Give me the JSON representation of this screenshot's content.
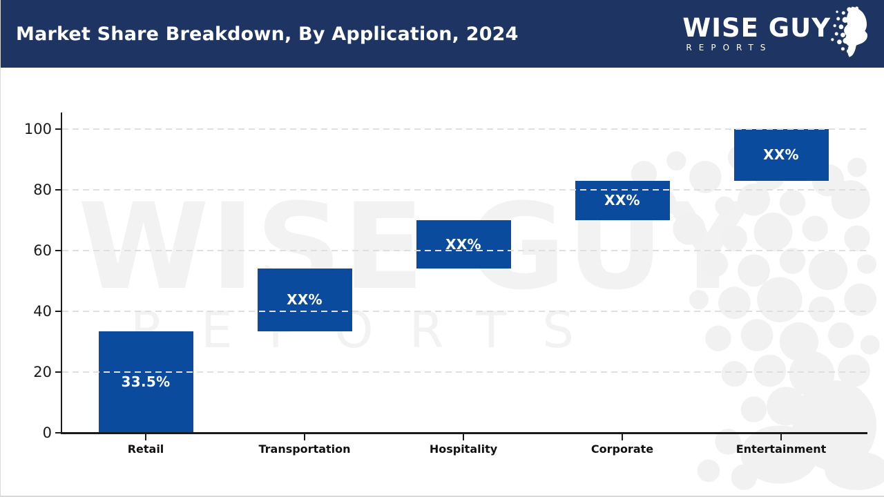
{
  "header": {
    "title": "Market Share Breakdown, By Application, 2024",
    "logo": {
      "line1": "WISE GUY",
      "line2": "REPORTS"
    }
  },
  "watermark": {
    "line1": "WISE GUY",
    "line2": "REPORTS"
  },
  "chart_data": {
    "type": "bar",
    "subtype": "waterfall-style floating percentage segments",
    "title": "Market Share Breakdown, By Application, 2024",
    "categories": [
      "Retail",
      "Transportation",
      "Hospitality",
      "Corporate",
      "Entertainment"
    ],
    "segments": [
      {
        "category": "Retail",
        "start": 0,
        "end": 33.5,
        "label": "33.5%"
      },
      {
        "category": "Transportation",
        "start": 33.5,
        "end": 54,
        "label": "XX%"
      },
      {
        "category": "Hospitality",
        "start": 54,
        "end": 70,
        "label": "XX%"
      },
      {
        "category": "Corporate",
        "start": 70,
        "end": 83,
        "label": "XX%"
      },
      {
        "category": "Entertainment",
        "start": 83,
        "end": 100,
        "label": "XX%"
      }
    ],
    "yticks": [
      0,
      20,
      40,
      60,
      80,
      100
    ],
    "ylim": [
      0,
      105
    ],
    "grid": "horizontal dashed, drawn over bars",
    "legend": "none",
    "bar_color": "#0b4b9e",
    "bar_label_color": "#ffffff",
    "header_color": "#1e3563"
  }
}
